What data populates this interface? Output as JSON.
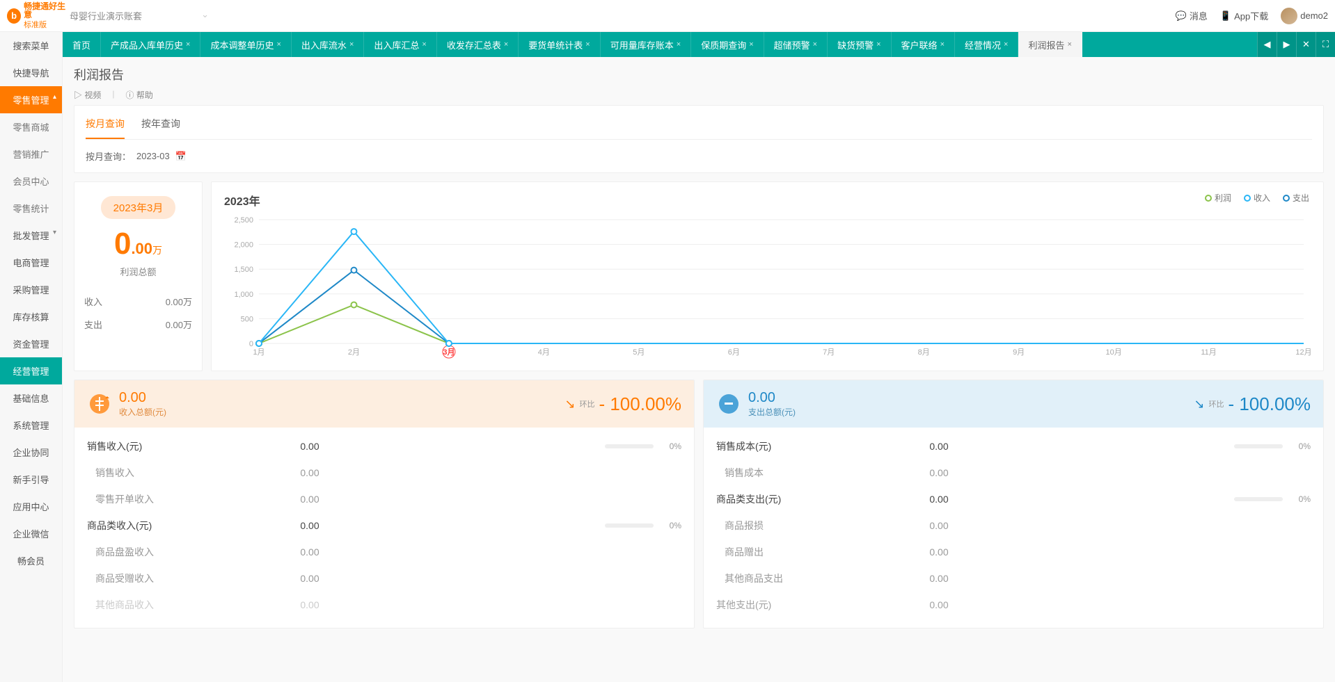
{
  "logo": {
    "text": "畅捷通好生意",
    "subtext": "标准版"
  },
  "account_selector": "母婴行业演示账套",
  "topbar_right": {
    "messages": "消息",
    "app_download": "App下载",
    "username": "demo2"
  },
  "sidebar": {
    "items": [
      {
        "label": "搜索菜单"
      },
      {
        "label": "快捷导航"
      },
      {
        "label": "零售管理",
        "active": true
      },
      {
        "label": "零售商城",
        "sub": true
      },
      {
        "label": "营销推广",
        "sub": true
      },
      {
        "label": "会员中心",
        "sub": true
      },
      {
        "label": "零售统计",
        "sub": true
      },
      {
        "label": "批发管理",
        "arrow": true
      },
      {
        "label": "电商管理"
      },
      {
        "label": "采购管理"
      },
      {
        "label": "库存核算"
      },
      {
        "label": "资金管理"
      },
      {
        "label": "经营管理",
        "highlight": true
      },
      {
        "label": "基础信息"
      },
      {
        "label": "系统管理"
      },
      {
        "label": "企业协同"
      },
      {
        "label": "新手引导"
      },
      {
        "label": "应用中心"
      },
      {
        "label": "企业微信"
      },
      {
        "label": "畅会员"
      }
    ]
  },
  "tabs": [
    {
      "label": "首页",
      "closable": false
    },
    {
      "label": "产成品入库单历史",
      "closable": true
    },
    {
      "label": "成本调整单历史",
      "closable": true
    },
    {
      "label": "出入库流水",
      "closable": true
    },
    {
      "label": "出入库汇总",
      "closable": true
    },
    {
      "label": "收发存汇总表",
      "closable": true
    },
    {
      "label": "要货单统计表",
      "closable": true
    },
    {
      "label": "可用量库存账本",
      "closable": true
    },
    {
      "label": "保质期查询",
      "closable": true
    },
    {
      "label": "超储预警",
      "closable": true
    },
    {
      "label": "缺货预警",
      "closable": true
    },
    {
      "label": "客户联络",
      "closable": true
    },
    {
      "label": "经营情况",
      "closable": true
    },
    {
      "label": "利润报告",
      "closable": true,
      "active": true
    }
  ],
  "page_title": "利润报告",
  "help": {
    "video": "视频",
    "help": "帮助"
  },
  "query_tabs": {
    "by_month": "按月查询",
    "by_year": "按年查询"
  },
  "query_row": {
    "label": "按月查询：",
    "value": "2023-03"
  },
  "summary": {
    "period": "2023年3月",
    "profit_int": "0",
    "profit_dec": ".00",
    "profit_unit": "万",
    "profit_label": "利润总额",
    "income_label": "收入",
    "income_value": "0.00万",
    "expense_label": "支出",
    "expense_value": "0.00万"
  },
  "chart": {
    "title": "2023年",
    "legend": {
      "profit": "利润",
      "income": "收入",
      "expense": "支出"
    },
    "colors": {
      "profit": "#8bc34a",
      "income": "#29b6f6",
      "expense": "#1e88c7"
    },
    "x_labels": [
      "1月",
      "2月",
      "3月",
      "4月",
      "5月",
      "6月",
      "7月",
      "8月",
      "9月",
      "10月",
      "11月",
      "12月"
    ],
    "y_ticks": [
      0,
      500,
      1000,
      1500,
      2000,
      2500
    ],
    "y_max": 2500,
    "highlight_month_index": 2,
    "series": {
      "profit": [
        0,
        780,
        0,
        0,
        0,
        0,
        0,
        0,
        0,
        0,
        0,
        0
      ],
      "income": [
        0,
        2260,
        0,
        0,
        0,
        0,
        0,
        0,
        0,
        0,
        0,
        0
      ],
      "expense": [
        0,
        1480,
        0,
        0,
        0,
        0,
        0,
        0,
        0,
        0,
        0,
        0
      ]
    },
    "background_color": "#ffffff",
    "grid_color": "#eeeeee",
    "axis_label_color": "#aaaaaa",
    "axis_label_fontsize": 11
  },
  "income_panel": {
    "value": "0.00",
    "label": "收入总额(元)",
    "hb_label": "环比",
    "pct": "- 100.00%",
    "rows": [
      {
        "name": "销售收入(元)",
        "val": "0.00",
        "bar_pct": "0%"
      },
      {
        "name": "销售收入",
        "val": "0.00",
        "sub": true
      },
      {
        "name": "零售开单收入",
        "val": "0.00",
        "sub": true
      },
      {
        "name": "商品类收入(元)",
        "val": "0.00",
        "bar_pct": "0%"
      },
      {
        "name": "商品盘盈收入",
        "val": "0.00",
        "sub": true
      },
      {
        "name": "商品受赠收入",
        "val": "0.00",
        "sub": true
      },
      {
        "name": "其他商品收入",
        "val": "0.00",
        "sub": true,
        "faded": true
      }
    ]
  },
  "expense_panel": {
    "value": "0.00",
    "label": "支出总额(元)",
    "hb_label": "环比",
    "pct": "- 100.00%",
    "rows": [
      {
        "name": "销售成本(元)",
        "val": "0.00",
        "bar_pct": "0%"
      },
      {
        "name": "销售成本",
        "val": "0.00",
        "sub": true
      },
      {
        "name": "商品类支出(元)",
        "val": "0.00",
        "bar_pct": "0%"
      },
      {
        "name": "商品报损",
        "val": "0.00",
        "sub": true
      },
      {
        "name": "商品赠出",
        "val": "0.00",
        "sub": true
      },
      {
        "name": "其他商品支出",
        "val": "0.00",
        "sub": true
      },
      {
        "name": "其他支出(元)",
        "val": "0.00",
        "faded": true
      }
    ]
  },
  "colors": {
    "brand_orange": "#ff7a00",
    "brand_teal": "#00a99d",
    "brand_blue": "#1e88c7"
  }
}
